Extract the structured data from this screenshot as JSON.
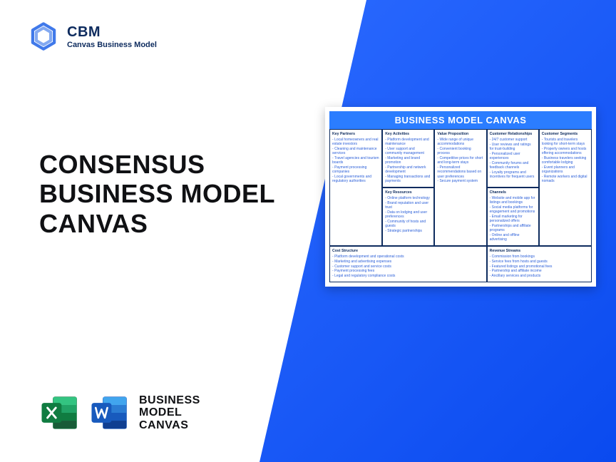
{
  "brand": {
    "abbr": "CBM",
    "name": "Canvas Business Model",
    "logo_color": "#1e62e6"
  },
  "main_title": "CONSENSUS\nBUSINESS MODEL\nCANVAS",
  "footer": {
    "label": "BUSINESS\nMODEL\nCANVAS",
    "excel_color_dark": "#107c41",
    "excel_color_light": "#21a366",
    "word_color_dark": "#185abd",
    "word_color_light": "#2b7cd3"
  },
  "canvas": {
    "title": "BUSINESS MODEL CANVAS",
    "title_bg": "#2b7dff",
    "text_color": "#2b5fd8",
    "border_color": "#0d2b5e",
    "blocks": {
      "key_partners": {
        "header": "Key Partners",
        "items": [
          "Local homeowners and real estate investors",
          "Cleaning and maintenance services",
          "Travel agencies and tourism boards",
          "Payment processing companies",
          "Local governments and regulatory authorities"
        ]
      },
      "key_activities": {
        "header": "Key Activities",
        "items": [
          "Platform development and maintenance",
          "User support and community management",
          "Marketing and brand promotion",
          "Partnership and network development",
          "Managing transactions and payments"
        ]
      },
      "key_resources": {
        "header": "Key Resources",
        "items": [
          "Online platform technology",
          "Brand reputation and user trust",
          "Data on lodging and user preferences",
          "Community of hosts and guests",
          "Strategic partnerships"
        ]
      },
      "value_proposition": {
        "header": "Value Proposition",
        "items": [
          "Wide range of unique accommodations",
          "Convenient booking process",
          "Competitive prices for short and long-term stays",
          "Personalized recommendations based on user preferences",
          "Secure payment system"
        ]
      },
      "customer_relationships": {
        "header": "Customer Relationships",
        "items": [
          "24/7 customer support",
          "User reviews and ratings for trust-building",
          "Personalized user experiences",
          "Community forums and feedback channels",
          "Loyalty programs and incentives for frequent users"
        ]
      },
      "channels": {
        "header": "Channels",
        "items": [
          "Website and mobile app for listings and bookings",
          "Social media platforms for engagement and promotions",
          "Email marketing for personalized offers",
          "Partnerships and affiliate programs",
          "Online and offline advertising"
        ]
      },
      "customer_segments": {
        "header": "Customer Segments",
        "items": [
          "Tourists and travelers looking for short-term stays",
          "Property owners and hosts offering accommodations",
          "Business travelers seeking comfortable lodging",
          "Event planners and organizations",
          "Remote workers and digital nomads"
        ]
      },
      "cost_structure": {
        "header": "Cost Structure",
        "items": [
          "Platform development and operational costs",
          "Marketing and advertising expenses",
          "Customer support and service costs",
          "Payment processing fees",
          "Legal and regulatory compliance costs"
        ]
      },
      "revenue_streams": {
        "header": "Revenue Streams",
        "items": [
          "Commission from bookings",
          "Service fees from hosts and guests",
          "Featured listings and promotional fees",
          "Partnership and affiliate income",
          "Ancillary services and products"
        ]
      }
    }
  }
}
